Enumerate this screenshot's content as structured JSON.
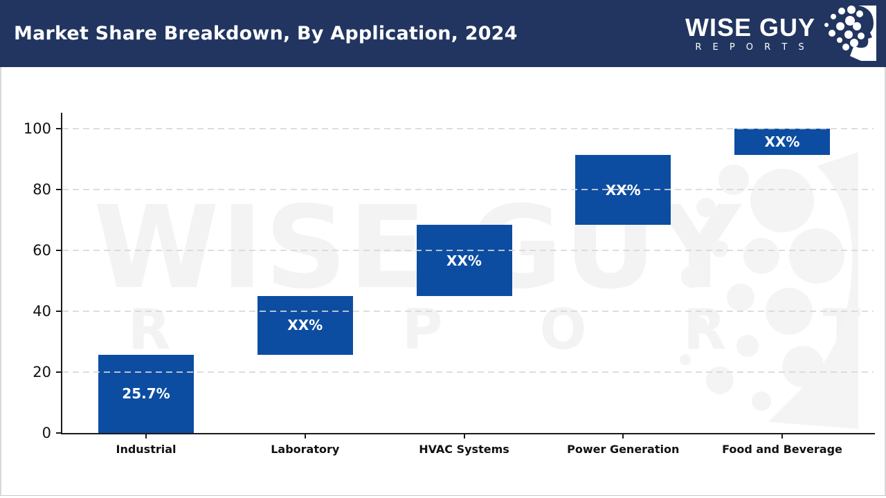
{
  "header": {
    "title": "Market Share Breakdown, By Application, 2024",
    "logo_line1": "WISE GUY",
    "logo_line2": "R E P O R T S"
  },
  "watermark": {
    "line1": "WISE GUY",
    "line2": "R E P O R T S"
  },
  "chart_data": {
    "type": "bar",
    "subtype": "floating-waterfall",
    "title": "Market Share Breakdown, By Application, 2024",
    "categories": [
      "Industrial",
      "Laboratory",
      "HVAC Systems",
      "Power Generation",
      "Food and Beverage"
    ],
    "segments": [
      {
        "category": "Industrial",
        "start": 0,
        "end": 25.7,
        "label": "25.7%"
      },
      {
        "category": "Laboratory",
        "start": 25.7,
        "end": 45.0,
        "label": "XX%"
      },
      {
        "category": "HVAC Systems",
        "start": 45.0,
        "end": 68.3,
        "label": "XX%"
      },
      {
        "category": "Power Generation",
        "start": 68.3,
        "end": 91.3,
        "label": "XX%"
      },
      {
        "category": "Food and Beverage",
        "start": 91.3,
        "end": 100,
        "label": "XX%"
      }
    ],
    "ylim": [
      0,
      100
    ],
    "yticks": [
      0,
      20,
      40,
      60,
      80,
      100
    ],
    "xlabel": "",
    "ylabel": "",
    "grid": "horizontal-dashed-on-top",
    "legend": "none",
    "colors": {
      "bar": "#0c4da2",
      "bar_label": "#ffffff",
      "grid": "#d7d7d7",
      "axis": "#1a1a1a",
      "header_bg": "#213560",
      "watermark": "#f3f3f3"
    }
  }
}
